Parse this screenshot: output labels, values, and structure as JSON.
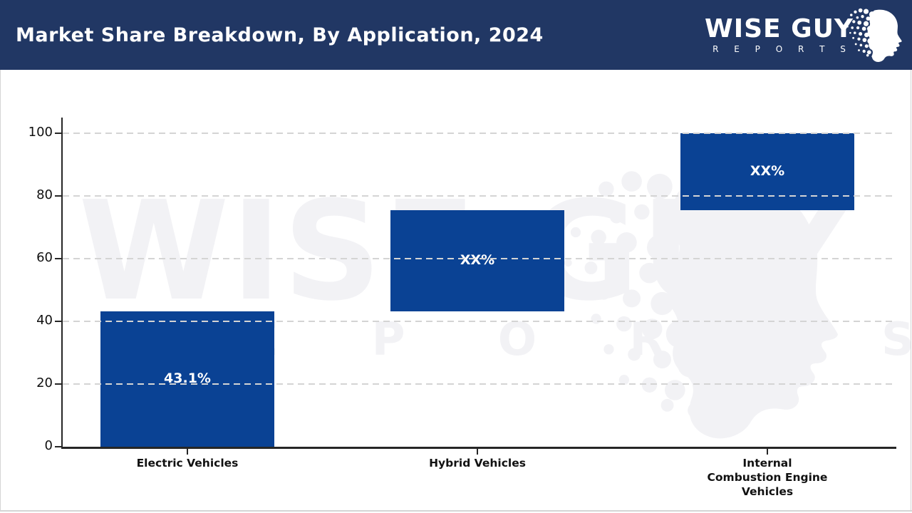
{
  "header": {
    "title": "Market Share Breakdown, By Application, 2024",
    "logo": {
      "brand_line1": "WISE GUY",
      "brand_line2": "R E P O R T S"
    }
  },
  "watermark": {
    "line1": "WISE GUY",
    "line2": "R E P O R T S"
  },
  "chart_data": {
    "type": "bar",
    "subtype": "stacked-waterfall-segments",
    "title": "Market Share Breakdown, By Application, 2024",
    "categories": [
      "Electric Vehicles",
      "Hybrid Vehicles",
      "Internal\nCombustion Engine\nVehicles"
    ],
    "bars": [
      {
        "category": "Electric Vehicles",
        "start": 0,
        "end": 43.1,
        "value_label": "43.1%"
      },
      {
        "category": "Hybrid Vehicles",
        "start": 43.1,
        "end": 75.5,
        "value_label": "XX%"
      },
      {
        "category": "Internal Combustion Engine Vehicles",
        "start": 75.5,
        "end": 100,
        "value_label": "XX%"
      }
    ],
    "ylim": [
      0,
      105
    ],
    "y_ticks": [
      0,
      20,
      40,
      60,
      80,
      100
    ],
    "grid": "horizontal-dashed",
    "legend": "none",
    "xlabel": "",
    "ylabel": ""
  },
  "colors": {
    "header_bg": "#213764",
    "bar_fill": "#0a4294",
    "value_label": "#ffffff",
    "gridline": "#d4d4d4",
    "axis": "#262626",
    "watermark": "#f2f2f5",
    "title_text": "#ffffff"
  }
}
